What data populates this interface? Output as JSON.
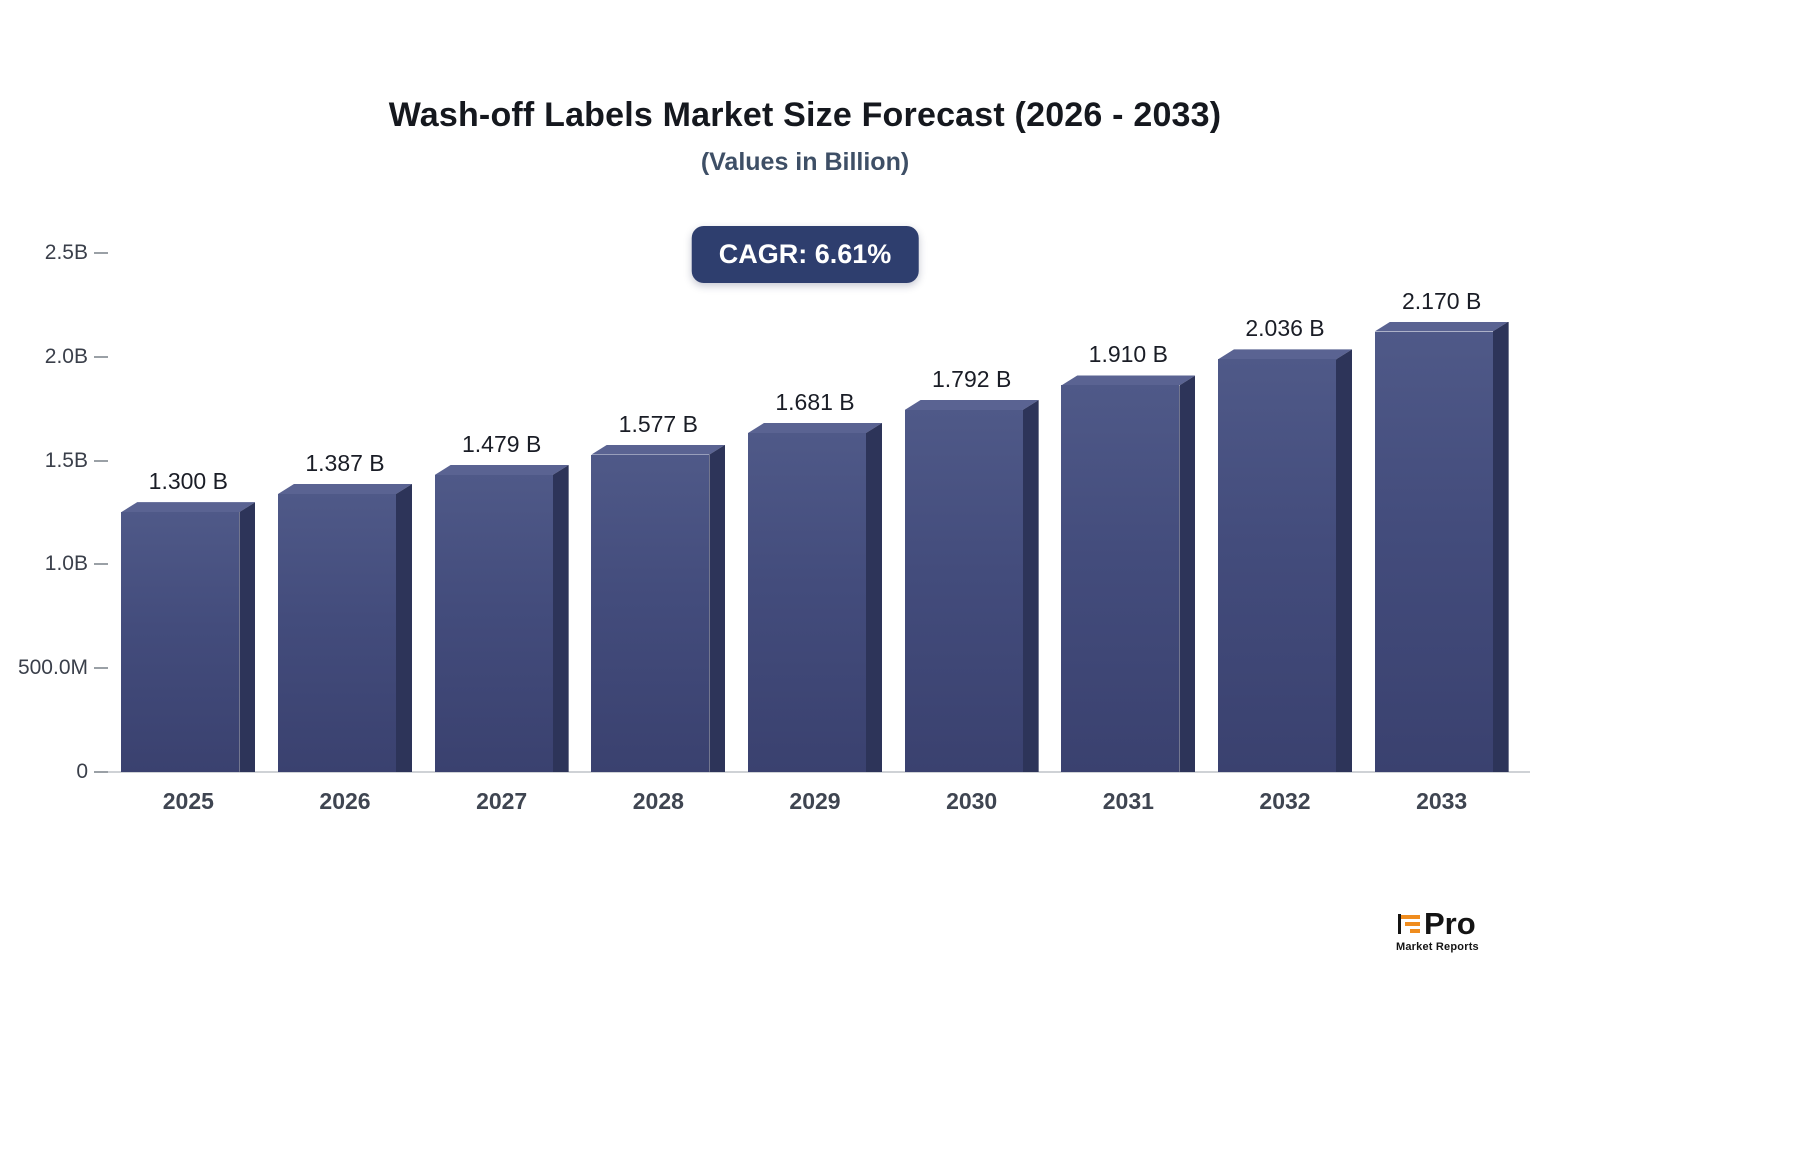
{
  "header": {
    "title": "Wash-off Labels Market Size Forecast (2026 - 2033)",
    "subtitle": "(Values in Billion)",
    "cagr_badge": "CAGR: 6.61%"
  },
  "chart_data": {
    "type": "bar",
    "title": "Wash-off Labels Market Size Forecast (2026 - 2033)",
    "subtitle": "(Values in Billion)",
    "categories": [
      "2025",
      "2026",
      "2027",
      "2028",
      "2029",
      "2030",
      "2031",
      "2032",
      "2033"
    ],
    "values": [
      1.3,
      1.387,
      1.479,
      1.577,
      1.681,
      1.792,
      1.91,
      2.036,
      2.17
    ],
    "value_labels": [
      "1.300 B",
      "1.387 B",
      "1.479 B",
      "1.577 B",
      "1.681 B",
      "1.792 B",
      "1.910 B",
      "2.036 B",
      "2.170 B"
    ],
    "unit": "Billion",
    "ylim": [
      0,
      2.5
    ],
    "yticks": [
      {
        "label": "2.5B",
        "value": 2.5
      },
      {
        "label": "2.0B",
        "value": 2.0
      },
      {
        "label": "1.5B",
        "value": 1.5
      },
      {
        "label": "1.0B",
        "value": 1.0
      },
      {
        "label": "500.0M",
        "value": 0.5
      },
      {
        "label": "0",
        "value": 0
      }
    ],
    "grid": false,
    "legend": false,
    "annotation": "CAGR: 6.61%",
    "colors": {
      "bar_front_top": "#4f5988",
      "bar_front_bottom": "#3a416f",
      "bar_side": "#2d3459",
      "bar_top": "#5a6392",
      "badge_bg": "#2e3e6e",
      "badge_text": "#ffffff"
    }
  },
  "branding": {
    "logo_text": "Pro",
    "logo_subtext": "Market Reports",
    "accent_color": "#ef8c1e"
  }
}
